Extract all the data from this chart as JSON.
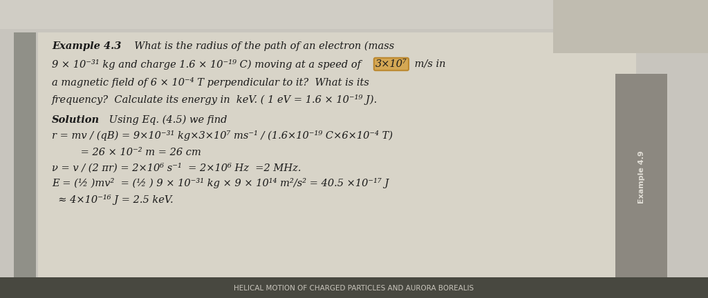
{
  "bg_color": "#c8c5be",
  "card_color": "#d6d3c8",
  "left_bar_color": "#888880",
  "right_bar_color": "#909088",
  "top_strip_color": "#c0bdb5",
  "bottom_bar_color": "#484840",
  "right_label": "Example 4.9",
  "bottom_text": "HELICAL MOTION OF CHARGED PARTICLES AND AURORA BOREALIS",
  "title_bold": "Example 4.3",
  "title_rest": "  What is the radius of the path of an electron (mass",
  "line2": "9 × 10⁻³¹ kg and charge 1.6 × 10⁻¹⁹ C) moving at a speed of ",
  "line2_hi": "3×10⁷",
  "line2_end": " m/s in",
  "line3": "a magnetic field of 6 × 10⁻⁴ T perpendicular to it?  What is its",
  "line4": "frequency?  Calculate its energy in  keV. ( 1 eV = 1.6 × 10⁻¹⁹ J).",
  "sol_bold": "Solution",
  "sol_rest": " Using Eq. (4.5) we find",
  "eq1a": "r = mv / (qB) = 9×10",
  "eq1b": "⁻³¹",
  "eq1c": " kg×3×10⁷ ms⁻¹ / (1.6×10⁻¹⁹ C×6×10⁻⁴ T)",
  "eq2": "         = 26 × 10⁻² m = 26 cm",
  "eq3": "ν = v / (2 πr) = 2×10⁶ s⁻¹  = 2×10⁶ Hz  =2 MHz.",
  "eq4": "E = (½ )mv²  = (½ ) 9 × 10⁻³¹ kg × 9 × 10¹⁴ m²/s² = 40.5 ×10⁻¹⁷ J",
  "eq5": "  ≈ 4×10⁻¹⁶ J = 2.5 keV.",
  "text_color": "#1a1a1a",
  "fs": 10.5,
  "fs_small": 7.5
}
